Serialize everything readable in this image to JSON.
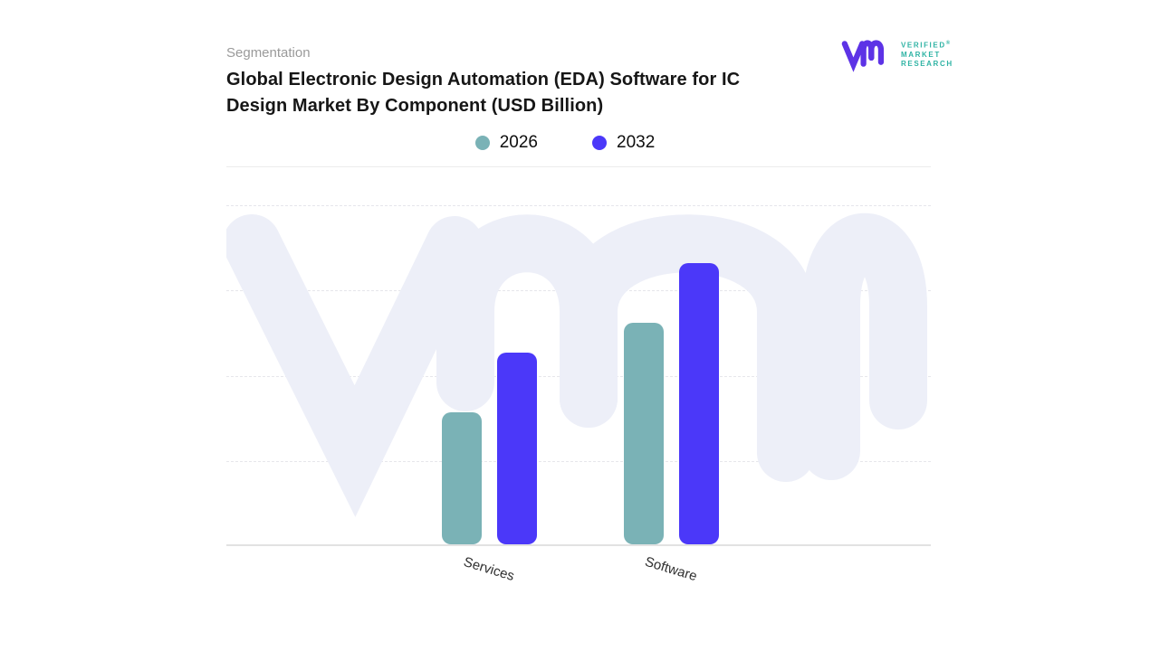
{
  "header": {
    "eyebrow": "Segmentation",
    "title_lines": [
      "Global Electronic Design Automation (EDA) Software for IC",
      "Design Market By Component (USD Billion)"
    ]
  },
  "logo": {
    "name_line1": "VERIFIED",
    "registered_mark": "®",
    "name_line2": "MARKET",
    "name_line3": "RESEARCH",
    "monogram_color": "#5d33e6",
    "text_color": "#2fb3a4"
  },
  "chart_data": {
    "type": "bar",
    "title": "Global Electronic Design Automation (EDA) Software for IC Design Market By Component (USD Billion)",
    "units": "USD Billion",
    "categories": [
      "Services",
      "Software"
    ],
    "series": [
      {
        "name": "2026",
        "color": "#7ab2b6",
        "values": [
          1.55,
          2.6
        ]
      },
      {
        "name": "2032",
        "color": "#4b38f9",
        "values": [
          2.25,
          3.3
        ]
      }
    ],
    "xlabel": "",
    "ylabel": "",
    "y_axis": {
      "tick_labels_visible": false,
      "ylim": [
        0,
        4
      ],
      "gridline_interval": 1,
      "note": "y-axis is unlabeled in the figure; values estimated in gridline units"
    },
    "legend_position": "top-center",
    "grid": "horizontal-dashed",
    "watermark_color": "#edeff8"
  }
}
